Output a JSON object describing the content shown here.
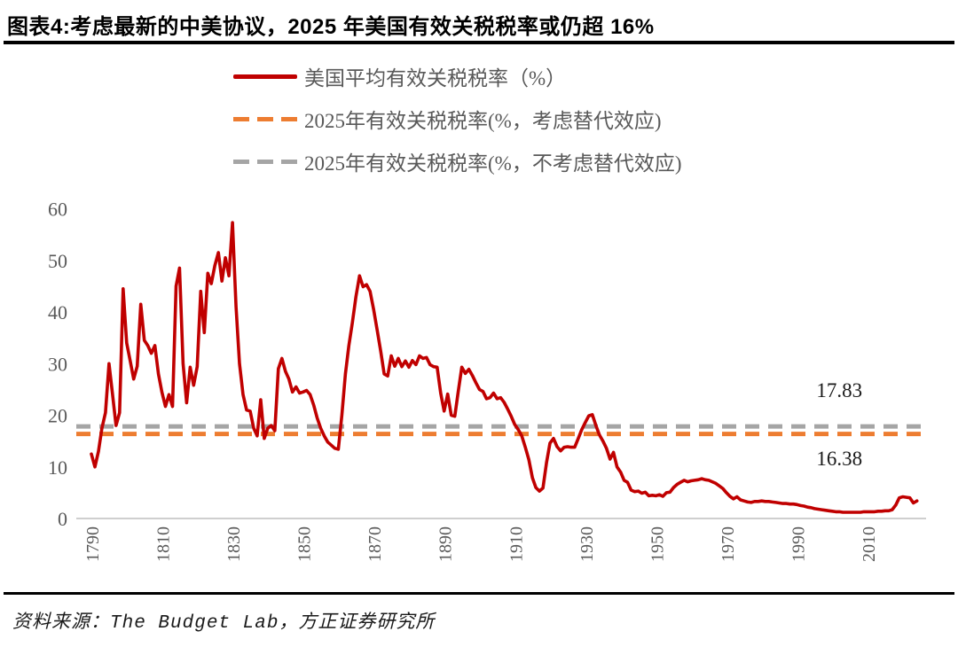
{
  "header": {
    "title": "图表4:考虑最新的中美协议，2025 年美国有效关税税率或仍超 16%"
  },
  "legend": {
    "items": [
      {
        "label": "美国平均有效关税税率（%）",
        "color": "#C00000",
        "style": "solid"
      },
      {
        "label": "2025年有效关税税率(%，考虑替代效应)",
        "color": "#ED7D31",
        "style": "dashed"
      },
      {
        "label": "2025年有效关税税率(%，不考虑替代效应)",
        "color": "#A5A5A5",
        "style": "dashed"
      }
    ]
  },
  "chart_data": {
    "type": "line",
    "title": "",
    "xlabel": "",
    "ylabel": "",
    "ylim": [
      0,
      60
    ],
    "xlim": [
      1786,
      2026
    ],
    "grid": false,
    "legend_position": "top",
    "yticks": [
      0,
      10,
      20,
      30,
      40,
      50,
      60
    ],
    "xticks": [
      1790,
      1810,
      1830,
      1850,
      1870,
      1890,
      1910,
      1930,
      1950,
      1970,
      1990,
      2010
    ],
    "series": [
      {
        "name": "美国平均有效关税税率（%）",
        "color": "#C00000",
        "year_start": 1790,
        "year_step": 1,
        "year_end": 2024,
        "values": [
          12.5,
          10,
          13,
          17.5,
          20.5,
          30,
          24,
          18,
          20.5,
          44.5,
          34,
          30.5,
          27,
          29.5,
          41.5,
          34.5,
          33.5,
          32,
          33.5,
          28,
          24.5,
          21.7,
          24,
          21.7,
          45,
          48.5,
          30,
          22.4,
          29.3,
          25.8,
          29.4,
          44,
          36,
          47.5,
          45.5,
          49,
          51.5,
          46,
          50.5,
          47,
          57.3,
          41,
          30,
          24,
          21,
          20.8,
          17.5,
          16,
          23,
          15.5,
          17.5,
          18,
          17,
          29,
          31,
          28.5,
          27,
          24.5,
          25.5,
          24.3,
          24.5,
          24.8,
          24,
          22,
          19.5,
          17.5,
          16,
          14.8,
          14.2,
          13.6,
          13.4,
          20,
          28,
          33.5,
          38,
          43,
          47,
          44.9,
          45.3,
          44,
          40.5,
          36.5,
          32.5,
          28,
          27.6,
          31.5,
          29.5,
          31,
          29.4,
          30.5,
          29.3,
          30.6,
          29.8,
          31.5,
          31,
          31.2,
          29.8,
          29.4,
          29.3,
          24.3,
          20.8,
          24.1,
          20,
          19.8,
          24.6,
          29.3,
          28.1,
          28.9,
          27.7,
          26.3,
          25,
          24.6,
          23.2,
          23.4,
          24.3,
          23.2,
          23.4,
          22.5,
          21.2,
          19.8,
          18.2,
          17.2,
          16,
          13.8,
          11.4,
          7.9,
          6,
          5.3,
          5.9,
          10.8,
          14.6,
          15.5,
          13.9,
          13.1,
          13.8,
          13.9,
          13.8,
          13.8,
          15.5,
          17.2,
          18.6,
          19.9,
          20.1,
          18,
          16.2,
          15,
          13.6,
          11.5,
          12.8,
          10,
          9,
          7.4,
          7,
          5.5,
          5.2,
          5.3,
          4.9,
          5.1,
          4.4,
          4.5,
          4.4,
          4.6,
          4.3,
          5,
          5.1,
          6,
          6.6,
          7,
          7.4,
          7.1,
          7.3,
          7.4,
          7.5,
          7.7,
          7.5,
          7.4,
          7.1,
          6.8,
          6.3,
          5.8,
          5,
          4.3,
          3.8,
          4.2,
          3.6,
          3.4,
          3.2,
          3.1,
          3.3,
          3.3,
          3.4,
          3.3,
          3.3,
          3.2,
          3.1,
          3,
          2.9,
          2.9,
          2.8,
          2.8,
          2.7,
          2.5,
          2.4,
          2.2,
          2.1,
          1.9,
          1.8,
          1.7,
          1.6,
          1.5,
          1.4,
          1.3,
          1.3,
          1.2,
          1.2,
          1.2,
          1.2,
          1.2,
          1.2,
          1.3,
          1.3,
          1.3,
          1.3,
          1.4,
          1.4,
          1.5,
          1.5,
          1.7,
          2.6,
          4,
          4.2,
          4.1,
          4,
          3,
          3.4
        ]
      },
      {
        "name": "2025年有效关税税率(%，考虑替代效应)",
        "color": "#ED7D31",
        "constant": 16.38
      },
      {
        "name": "2025年有效关税税率(%，不考虑替代效应)",
        "color": "#A5A5A5",
        "constant": 17.83
      }
    ],
    "annotations": [
      {
        "text": "17.83",
        "year": 2002,
        "value": 23.5
      },
      {
        "text": "16.38",
        "year": 2002,
        "value": 10.3
      }
    ]
  },
  "footer": {
    "source": "资料来源：The Budget Lab，方正证券研究所"
  },
  "colors": {
    "line_red": "#C00000",
    "dash_orange": "#ED7D31",
    "dash_gray": "#A5A5A5",
    "axis_text": "#595959",
    "axis_line": "#BFBFBF",
    "rule_black": "#000000"
  }
}
